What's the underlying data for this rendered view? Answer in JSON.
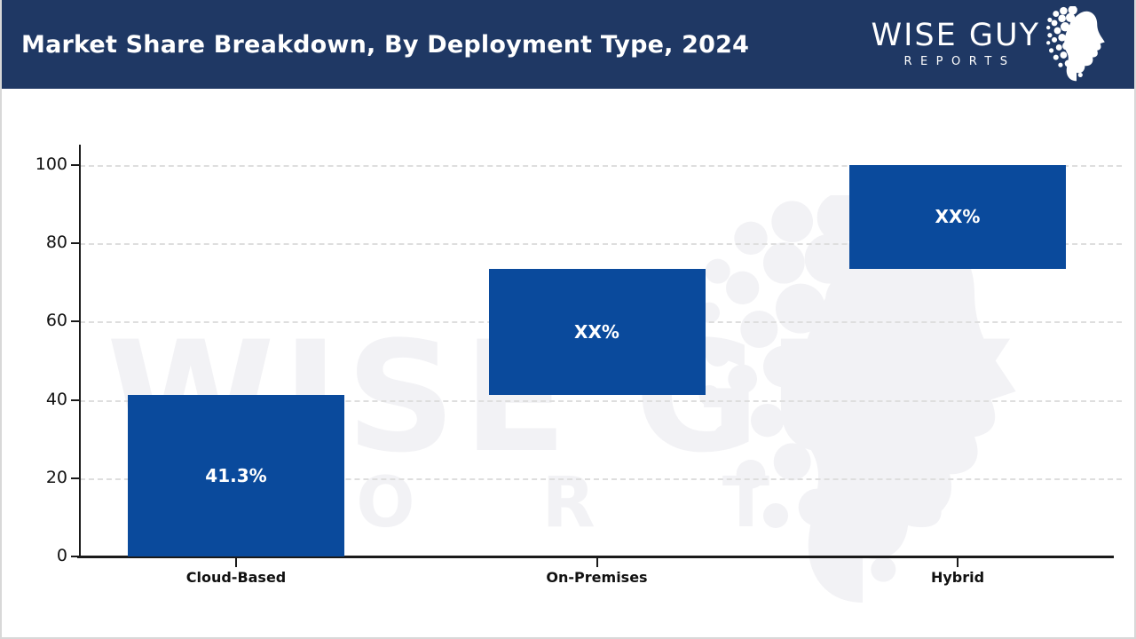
{
  "page": {
    "background": "#ffffff",
    "border_color": "#d8d8d8"
  },
  "header": {
    "background": "#1f3864",
    "title": "Market Share Breakdown, By Deployment Type, 2024",
    "logo": {
      "primary": "WISE GUY",
      "secondary": "REPORTS"
    }
  },
  "watermark": {
    "primary": "WISE GUY",
    "secondary": "R O R T S",
    "head": "dotted-head-profile"
  },
  "chart_data": {
    "type": "bar",
    "subtype": "waterfall-stacked",
    "title": "Market Share Breakdown, By Deployment Type, 2024",
    "categories": [
      "Cloud-Based",
      "On-Premises",
      "Hybrid"
    ],
    "segments": [
      {
        "category": "Cloud-Based",
        "start": 0,
        "end": 41.3,
        "label": "41.3%"
      },
      {
        "category": "On-Premises",
        "start": 41.3,
        "end": 73.5,
        "label": "XX%"
      },
      {
        "category": "Hybrid",
        "start": 73.5,
        "end": 100,
        "label": "XX%"
      }
    ],
    "yticks": [
      0,
      20,
      40,
      60,
      80,
      100
    ],
    "ylim": [
      0,
      105
    ],
    "xlabel": "",
    "ylabel": "",
    "grid": {
      "horizontal": true,
      "style": "dashed",
      "color": "#dedede"
    },
    "legend": "none",
    "bar_color": "#0a4a9c",
    "bar_label_color": "#ffffff",
    "axis_color": "#1a1a1a",
    "tick_label_color": "#111111"
  }
}
